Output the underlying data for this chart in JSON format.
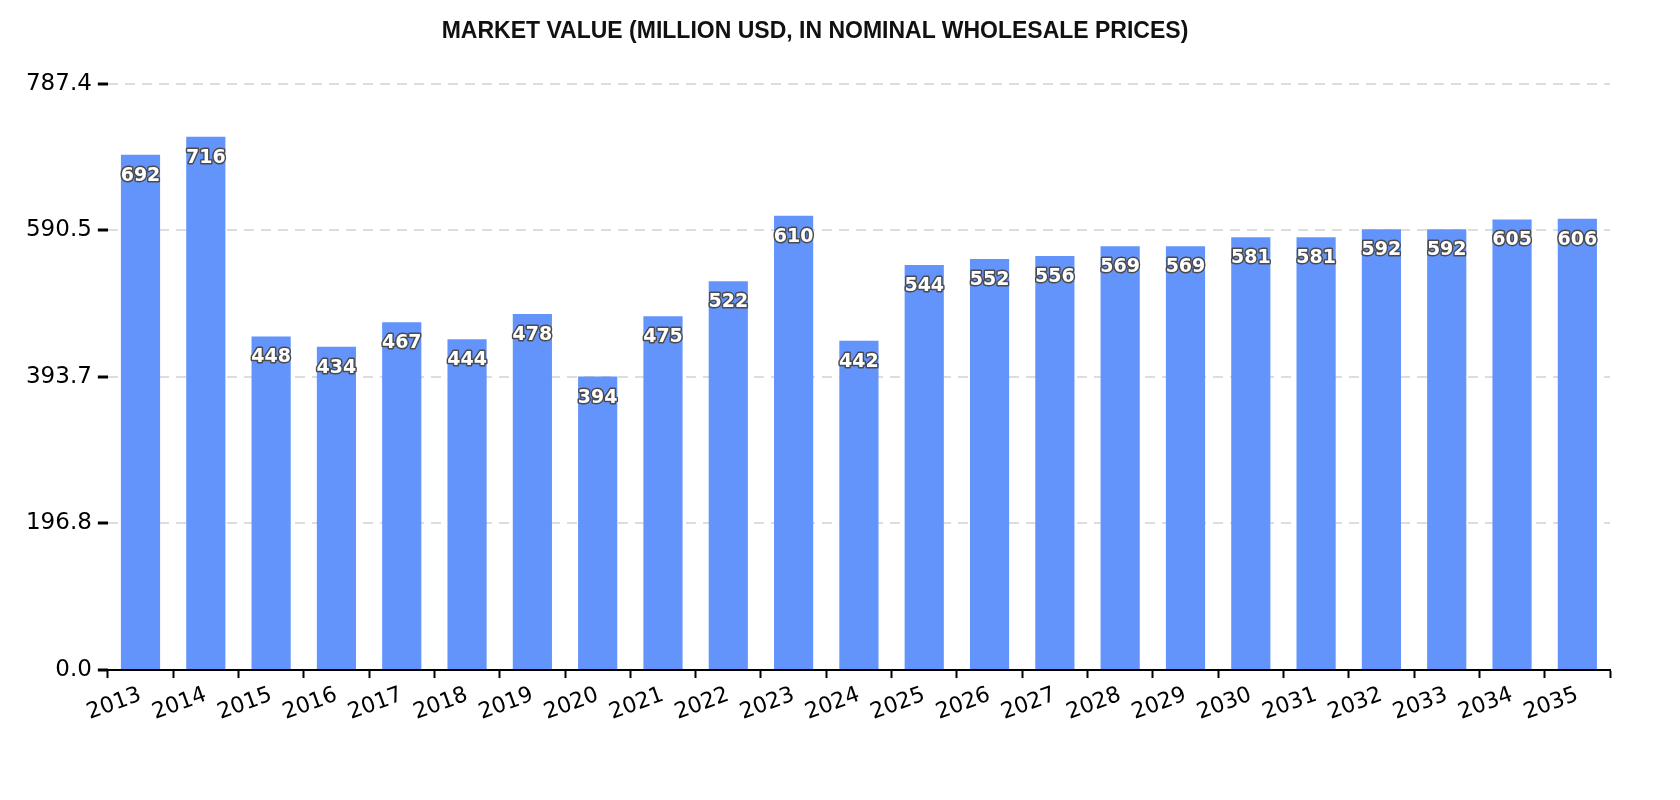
{
  "chart_data": {
    "type": "bar",
    "title": "MARKET VALUE (MILLION USD, IN NOMINAL WHOLESALE PRICES)",
    "categories": [
      "2013",
      "2014",
      "2015",
      "2016",
      "2017",
      "2018",
      "2019",
      "2020",
      "2021",
      "2022",
      "2023",
      "2024",
      "2025",
      "2026",
      "2027",
      "2028",
      "2029",
      "2030",
      "2031",
      "2032",
      "2033",
      "2034",
      "2035"
    ],
    "values": [
      692,
      716,
      448,
      434,
      467,
      444,
      478,
      394,
      475,
      522,
      610,
      442,
      544,
      552,
      556,
      569,
      569,
      581,
      581,
      592,
      592,
      605,
      606
    ],
    "color": "#6394fc",
    "ylim": [
      0,
      787.4
    ],
    "yticks": [
      {
        "value": 0,
        "label": "0.0"
      },
      196.8,
      393.7,
      590.5,
      787.4
    ],
    "grid": "y",
    "data_labels": true
  }
}
